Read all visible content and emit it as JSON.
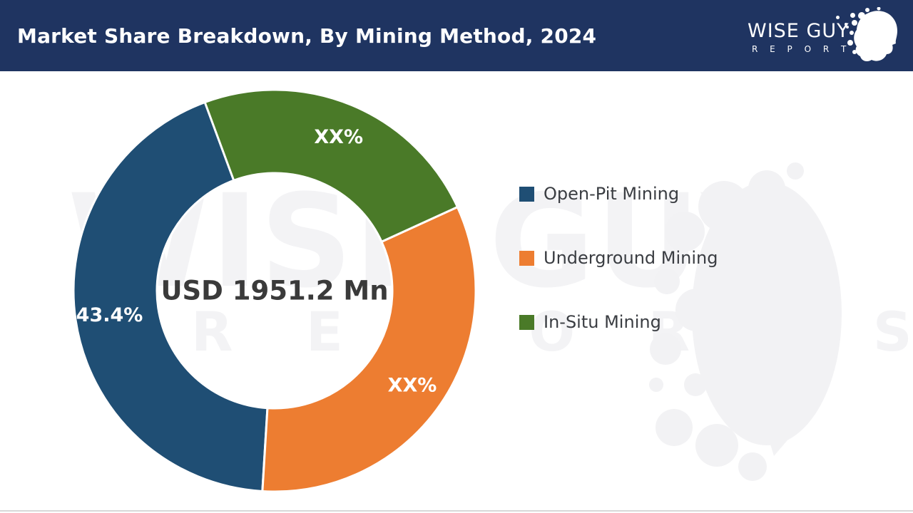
{
  "header": {
    "title": "Market Share Breakdown, By Mining Method, 2024"
  },
  "logo": {
    "line1": "WISE GUY",
    "line2": "R E P O R T S"
  },
  "watermark": {
    "line1": "WISE GUY",
    "line2": "R E P O R T S"
  },
  "chart_data": {
    "type": "donut",
    "title": "Market Share Breakdown, By Mining Method, 2024",
    "center_label": "USD 1951.2 Mn",
    "legend_position": "right",
    "value_note": "two slices are masked as XX% in the source image; their share_pct values are estimated from arc angles",
    "segments": [
      {
        "name": "Open-Pit Mining",
        "label": "43.4%",
        "share_pct": 43.4,
        "color": "#1f4e74",
        "start_angle_deg": 183.5
      },
      {
        "name": "Underground Mining",
        "label": "XX%",
        "share_pct": 32.8,
        "color": "#ed7d31",
        "start_angle_deg": 65.4
      },
      {
        "name": "In-Situ Mining",
        "label": "XX%",
        "share_pct": 23.8,
        "color": "#4a7a28",
        "start_angle_deg": 339.7
      }
    ]
  },
  "colors": {
    "header_bg": "#1f3461",
    "text_dark": "#3a3d42",
    "watermark": "#f3f3f5",
    "center_text": "#3a3a3a"
  }
}
